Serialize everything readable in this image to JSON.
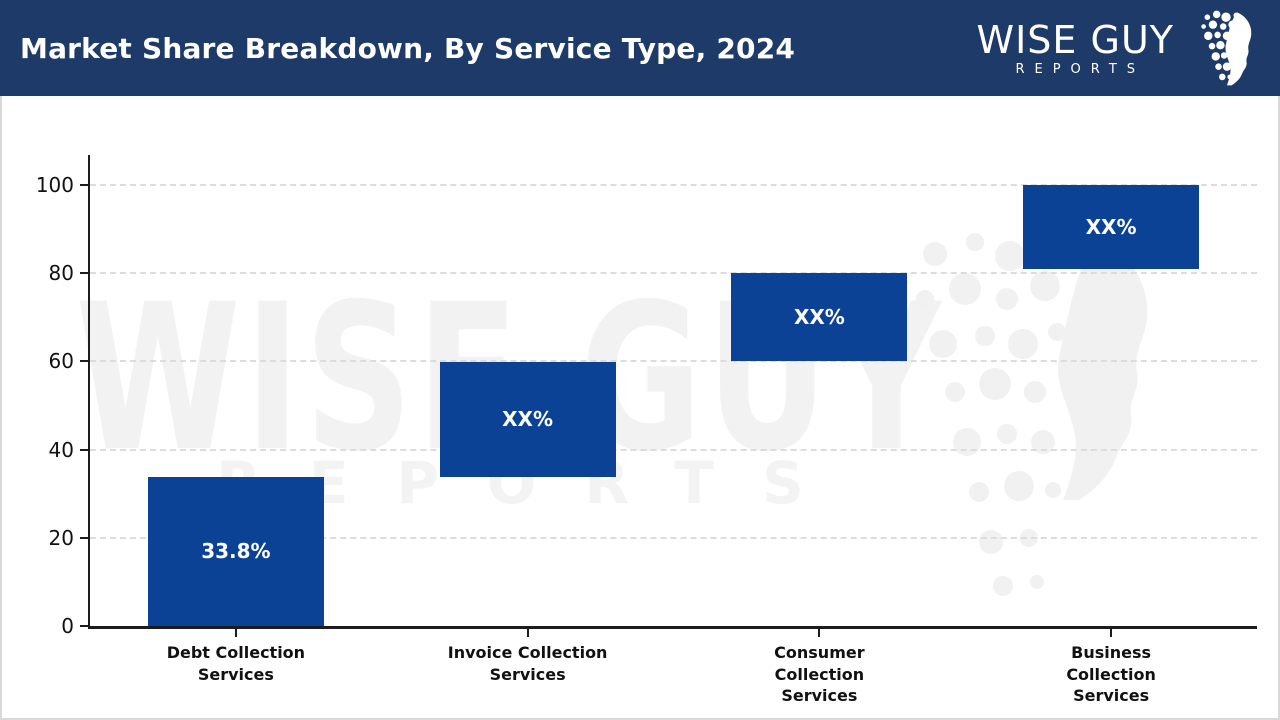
{
  "header": {
    "title": "Market Share Breakdown, By Service Type, 2024",
    "bg_color": "#1e3a68",
    "logo": {
      "line1": "WISE GUY",
      "line2": "REPORTS"
    }
  },
  "watermark": {
    "line1": "WISE GUY",
    "line2": "REPORTS"
  },
  "chart_data": {
    "type": "bar",
    "subtype": "waterfall",
    "title": "Market Share Breakdown, By Service Type, 2024",
    "categories": [
      "Debt Collection\nServices",
      "Invoice Collection\nServices",
      "Consumer\nCollection\nServices",
      "Business\nCollection\nServices"
    ],
    "bars": [
      {
        "label": "Debt Collection Services",
        "value_label": "33.8%",
        "start": 0,
        "end": 33.8
      },
      {
        "label": "Invoice Collection Services",
        "value_label": "XX%",
        "start": 33.8,
        "end": 59.9
      },
      {
        "label": "Consumer Collection Services",
        "value_label": "XX%",
        "start": 60,
        "end": 80
      },
      {
        "label": "Business Collection Services",
        "value_label": "XX%",
        "start": 81,
        "end": 100
      }
    ],
    "y_ticks": [
      0,
      20,
      40,
      60,
      80,
      100
    ],
    "ylim": [
      0,
      107
    ],
    "xlabel": "",
    "ylabel": "",
    "bar_color": "#0b4295",
    "value_label_color": "#ffffff",
    "grid": "horizontal-dashed",
    "legend": "none"
  }
}
